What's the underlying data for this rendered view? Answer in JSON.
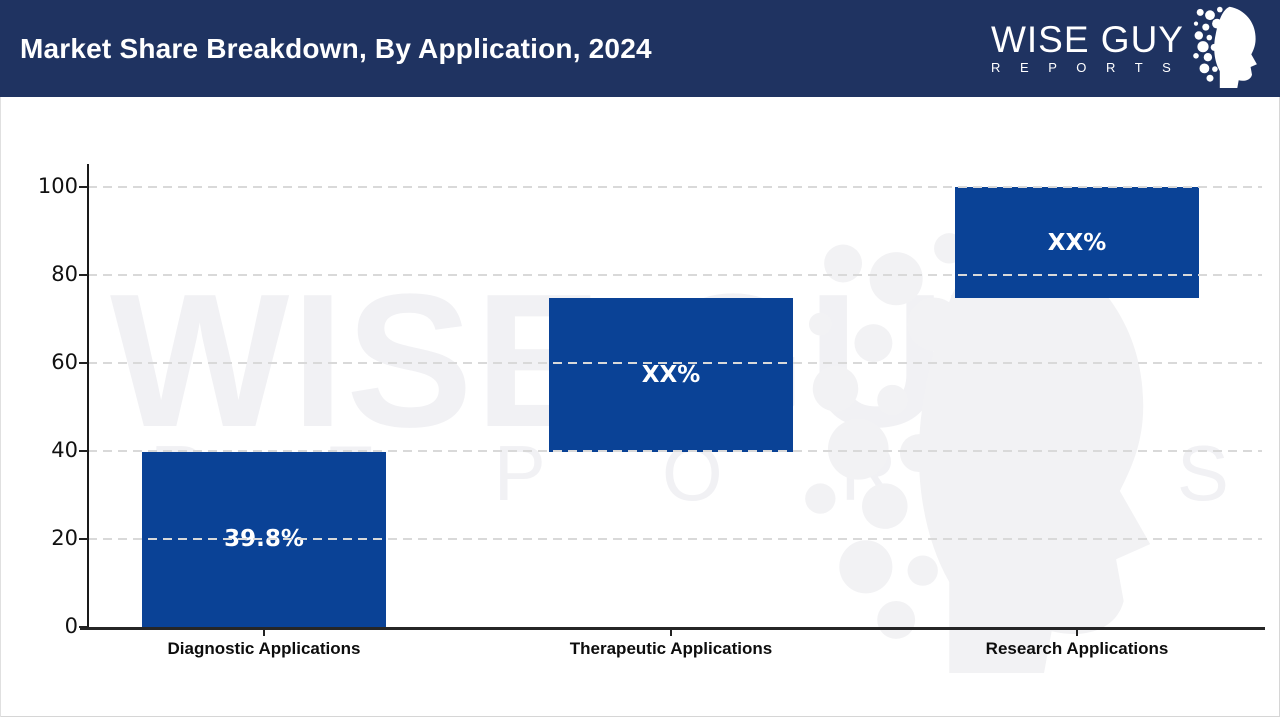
{
  "header": {
    "title": "Market Share Breakdown, By Application, 2024"
  },
  "logo": {
    "line1": "WISE GUY",
    "line2": "R E P O R T S"
  },
  "watermark": {
    "line1": "WISE GUY",
    "line2": "R E P O R T S"
  },
  "chart_data": {
    "type": "bar",
    "subtype": "stacked-waterfall",
    "title": "Market Share Breakdown, By Application, 2024",
    "categories": [
      "Diagnostic Applications",
      "Therapeutic Applications",
      "Research Applications"
    ],
    "segments": [
      {
        "category": "Diagnostic Applications",
        "start": 0,
        "end": 39.8,
        "label": "39.8%"
      },
      {
        "category": "Therapeutic Applications",
        "start": 39.8,
        "end": 74.7,
        "label": "XX%"
      },
      {
        "category": "Research Applications",
        "start": 74.7,
        "end": 100,
        "label": "XX%"
      }
    ],
    "yticks": [
      0,
      20,
      40,
      60,
      80,
      100
    ],
    "ylim": [
      0,
      105
    ],
    "xlabel": "",
    "ylabel": "",
    "bar_color": "#0a4296",
    "grid": "horizontal-dashed",
    "grid_above_bars": true,
    "legend": false
  }
}
